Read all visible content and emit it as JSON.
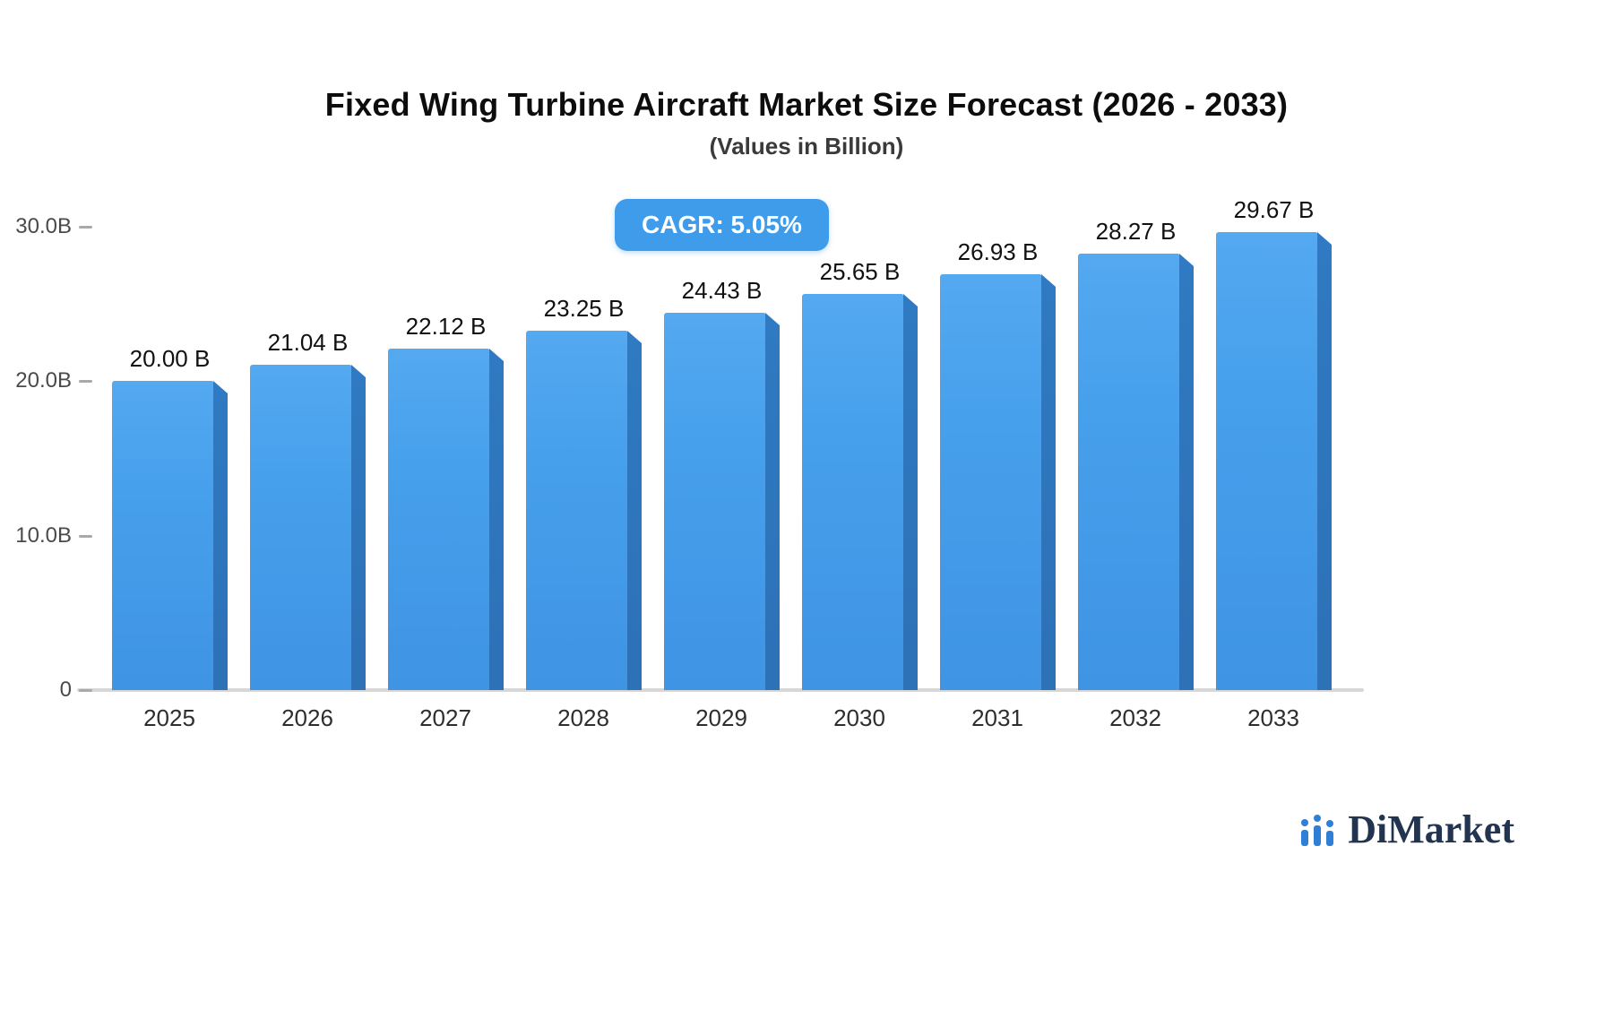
{
  "header": {
    "title": "Fixed Wing Turbine Aircraft Market Size Forecast (2026 - 2033)",
    "subtitle": "(Values in Billion)"
  },
  "badge": {
    "label": "CAGR: 5.05%"
  },
  "logo": {
    "text": "DiMarket"
  },
  "colors": {
    "bar_face_top": "#54a9f0",
    "bar_face_bottom": "#3f94e4",
    "bar_side": "#2d71b6",
    "badge_bg": "#3f9ceb",
    "logo_icon": "#2f7fd6",
    "logo_text": "#22344f"
  },
  "chart_data": {
    "type": "bar",
    "title": "Fixed Wing Turbine Aircraft Market Size Forecast (2026 - 2033)",
    "subtitle": "(Values in Billion)",
    "categories": [
      "2025",
      "2026",
      "2027",
      "2028",
      "2029",
      "2030",
      "2031",
      "2032",
      "2033"
    ],
    "values": [
      20.0,
      21.04,
      22.12,
      23.25,
      24.43,
      25.65,
      26.93,
      28.27,
      29.67
    ],
    "value_labels": [
      "20.00 B",
      "21.04 B",
      "22.12 B",
      "23.25 B",
      "24.43 B",
      "25.65 B",
      "26.93 B",
      "28.27 B",
      "29.67 B"
    ],
    "unit": "Billion",
    "cagr": "5.05%",
    "xlabel": "",
    "ylabel": "",
    "ylim": [
      0,
      30
    ],
    "grid": false,
    "legend": false,
    "yticks": [
      {
        "value": 0,
        "label": "0"
      },
      {
        "value": 10,
        "label": "10.0B"
      },
      {
        "value": 20,
        "label": "20.0B"
      },
      {
        "value": 30,
        "label": "30.0B"
      }
    ]
  }
}
